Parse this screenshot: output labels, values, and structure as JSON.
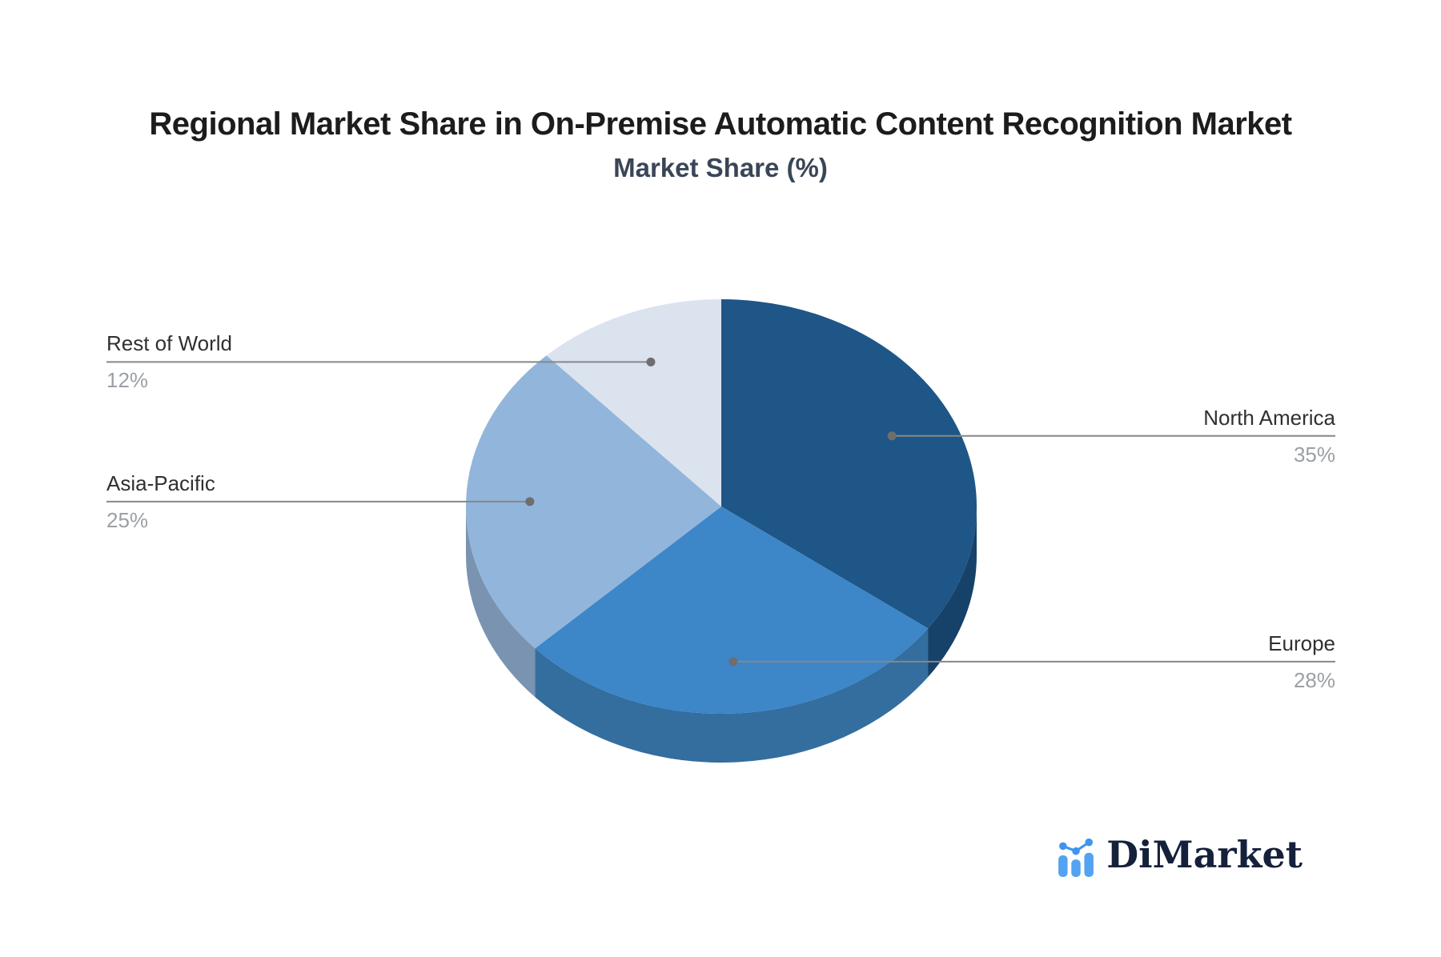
{
  "header": {
    "title": "Regional Market Share in On-Premise Automatic Content Recognition Market",
    "subtitle": "Market Share (%)"
  },
  "chart_data": {
    "type": "pie",
    "style": "3d",
    "title": "Regional Market Share in On-Premise Automatic Content Recognition Market",
    "subtitle": "Market Share (%)",
    "unit": "%",
    "start_angle_deg": 0,
    "direction": "clockwise",
    "slices": [
      {
        "label": "North America",
        "value": 35,
        "display": "35%",
        "color": "#1E5687",
        "side_color": "#16426A"
      },
      {
        "label": "Europe",
        "value": 28,
        "display": "28%",
        "color": "#3D86C8",
        "side_color": "#336E9F"
      },
      {
        "label": "Asia-Pacific",
        "value": 25,
        "display": "25%",
        "color": "#92B5DB",
        "side_color": "#7A93B1"
      },
      {
        "label": "Rest of World",
        "value": 12,
        "display": "12%",
        "color": "#DBE3EF",
        "side_color": "#C2CCDB"
      }
    ],
    "label_color": "#303030",
    "percent_color": "#9ba0a6",
    "leader_line_color": "#878787",
    "leader_dot_color": "#6e6e6e",
    "legend_position": "none",
    "background": "#ffffff"
  },
  "branding": {
    "name": "DiMarket",
    "icon": "bar-chart-logo-icon",
    "icon_color": "#54A3F2",
    "icon_accent_color": "#3F94EE",
    "text_color": "#15213b"
  }
}
